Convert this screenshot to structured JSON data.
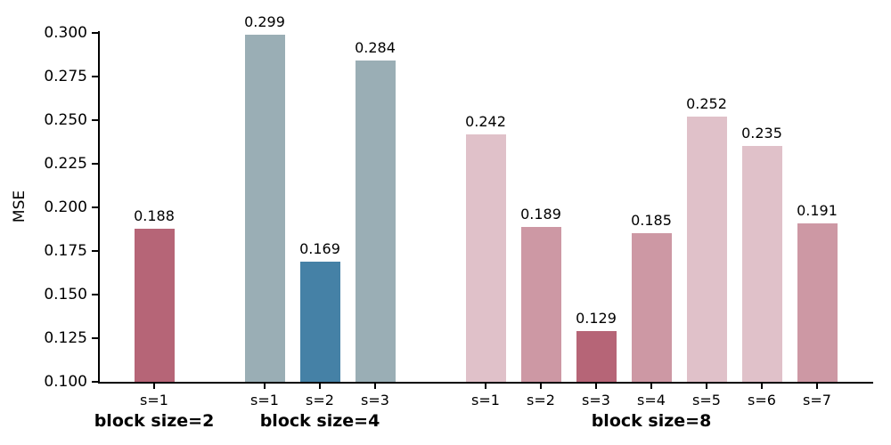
{
  "chart_data": {
    "type": "bar",
    "title": "",
    "xlabel": "",
    "ylabel": "MSE",
    "ylim": [
      0.1,
      0.301
    ],
    "yticks": [
      0.1,
      0.125,
      0.15,
      0.175,
      0.2,
      0.225,
      0.25,
      0.275,
      0.3
    ],
    "value_label_decimals": 3,
    "grid": false,
    "legend": "none",
    "groups": [
      {
        "label": "block size=2",
        "bars": [
          {
            "label": "s=1",
            "value": 0.188,
            "color": "#b66577"
          }
        ]
      },
      {
        "label": "block size=4",
        "bars": [
          {
            "label": "s=1",
            "value": 0.299,
            "color": "#9aaeb5"
          },
          {
            "label": "s=2",
            "value": 0.169,
            "color": "#4581a6"
          },
          {
            "label": "s=3",
            "value": 0.284,
            "color": "#9aaeb5"
          }
        ]
      },
      {
        "label": "block size=8",
        "bars": [
          {
            "label": "s=1",
            "value": 0.242,
            "color": "#e0c1c9"
          },
          {
            "label": "s=2",
            "value": 0.189,
            "color": "#cd98a4"
          },
          {
            "label": "s=3",
            "value": 0.129,
            "color": "#b66577"
          },
          {
            "label": "s=4",
            "value": 0.185,
            "color": "#cd98a4"
          },
          {
            "label": "s=5",
            "value": 0.252,
            "color": "#e0c1c9"
          },
          {
            "label": "s=6",
            "value": 0.235,
            "color": "#e0c1c9"
          },
          {
            "label": "s=7",
            "value": 0.191,
            "color": "#cd98a4"
          }
        ]
      }
    ],
    "colors": {
      "highlight_rose": "#b66577",
      "muted_blue_gray": "#9aaeb5",
      "highlight_blue": "#4581a6",
      "light_pink": "#e0c1c9",
      "medium_pink": "#cd98a4",
      "axis": "#000000",
      "background": "#ffffff"
    }
  }
}
